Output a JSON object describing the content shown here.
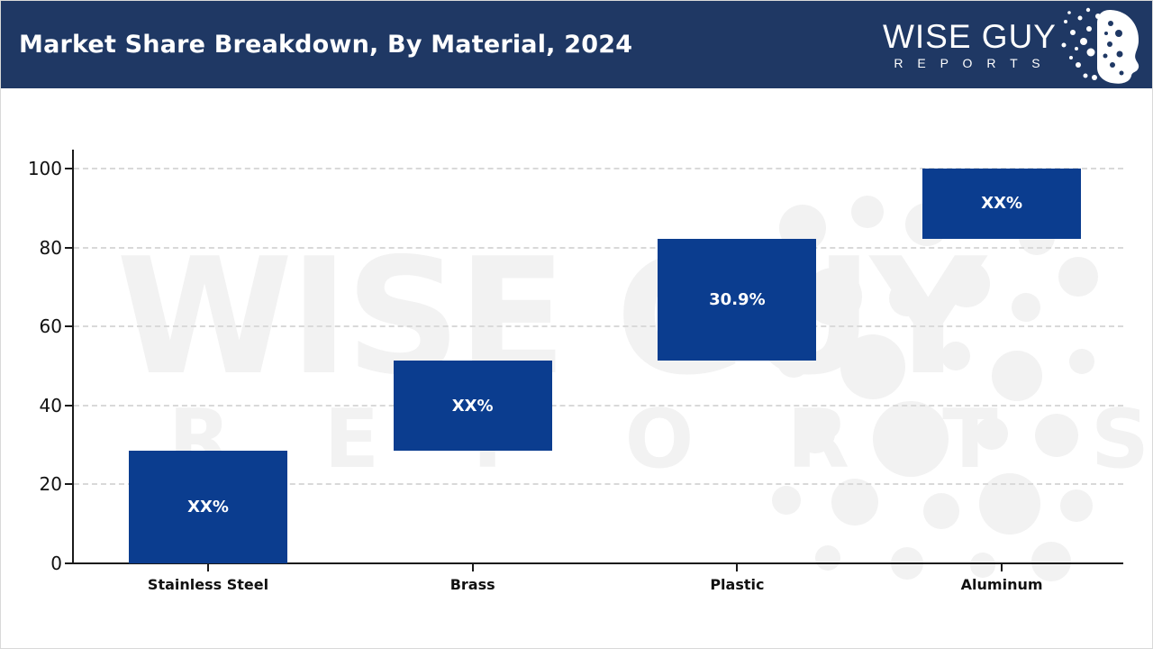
{
  "header": {
    "title": "Market Share Breakdown, By Material, 2024",
    "bg_color": "#1f3864",
    "logo": {
      "wordmark": "WISE GUY",
      "reports_line": "R E P O R T S",
      "face_icon": "dotted-head-profile"
    }
  },
  "watermark": {
    "wordmark": "WISE GUY",
    "reports_line": "R E P O R T S",
    "dots_icon": "dotted-head-profile",
    "color": "#f2f2f2"
  },
  "chart_data": {
    "type": "waterfall",
    "title": "Market Share Breakdown, By Material, 2024",
    "categories": [
      "Stainless Steel",
      "Brass",
      "Plastic",
      "Aluminum"
    ],
    "segments": [
      {
        "category": "Stainless Steel",
        "start": 0,
        "end": 28.6,
        "value_label": "XX%"
      },
      {
        "category": "Brass",
        "start": 28.6,
        "end": 51.3,
        "value_label": "XX%"
      },
      {
        "category": "Plastic",
        "start": 51.3,
        "end": 82.2,
        "value": 30.9,
        "value_label": "30.9%"
      },
      {
        "category": "Aluminum",
        "start": 82.2,
        "end": 100,
        "value_label": "XX%"
      }
    ],
    "bar_color": "#0b3d8f",
    "ylim": [
      0,
      100
    ],
    "yticks": [
      0,
      20,
      40,
      60,
      80,
      100
    ],
    "xlabel": "",
    "ylabel": "",
    "grid": "horizontal-dashed",
    "gridline_color": "#d9d9d9",
    "legend": "none"
  }
}
